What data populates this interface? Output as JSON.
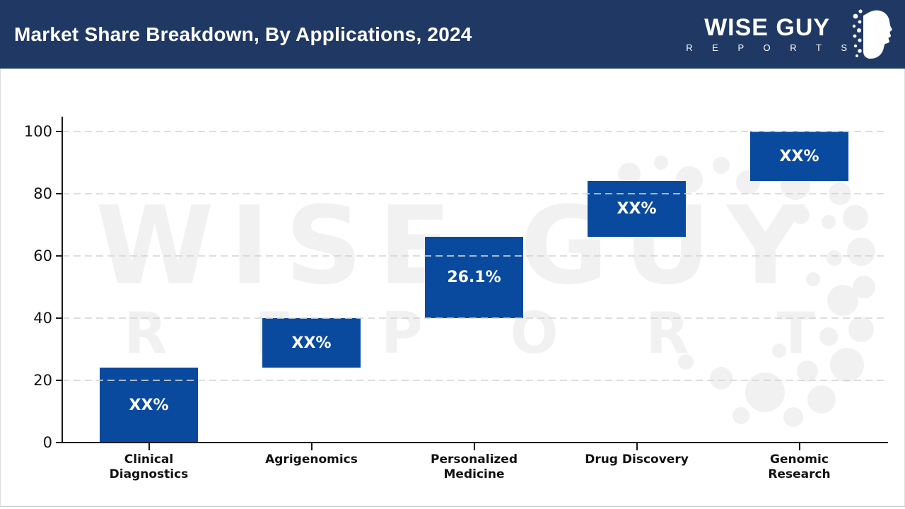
{
  "header": {
    "title": "Market Share Breakdown, By Applications, 2024",
    "logo": {
      "name": "WISE GUY",
      "subtitle": "R E P O R T S"
    }
  },
  "watermark": {
    "line1": "WISE GUY",
    "line2": "R E P O R T S"
  },
  "chart_data": {
    "type": "bar",
    "subtype": "floating-waterfall",
    "title": "Market Share Breakdown, By Applications, 2024",
    "categories": [
      "Clinical Diagnostics",
      "Agrigenomics",
      "Personalized Medicine",
      "Drug Discovery",
      "Genomic Research"
    ],
    "bars": [
      {
        "category": "Clinical Diagnostics",
        "start": 0,
        "end": 24,
        "label": "XX%"
      },
      {
        "category": "Agrigenomics",
        "start": 24,
        "end": 40,
        "label": "XX%"
      },
      {
        "category": "Personalized Medicine",
        "start": 40,
        "end": 66.1,
        "label": "26.1%"
      },
      {
        "category": "Drug Discovery",
        "start": 66.1,
        "end": 84,
        "label": "XX%"
      },
      {
        "category": "Genomic Research",
        "start": 84,
        "end": 100,
        "label": "XX%"
      }
    ],
    "yticks": [
      0,
      20,
      40,
      60,
      80,
      100
    ],
    "ylim": [
      0,
      105
    ],
    "xlabel": "",
    "ylabel": "",
    "grid": "horizontal-dashed",
    "legend": "none",
    "bar_color": "#0a4a9e",
    "bar_label_color": "#ffffff",
    "axis_color": "#1a1a1a",
    "header_color": "#203864"
  }
}
